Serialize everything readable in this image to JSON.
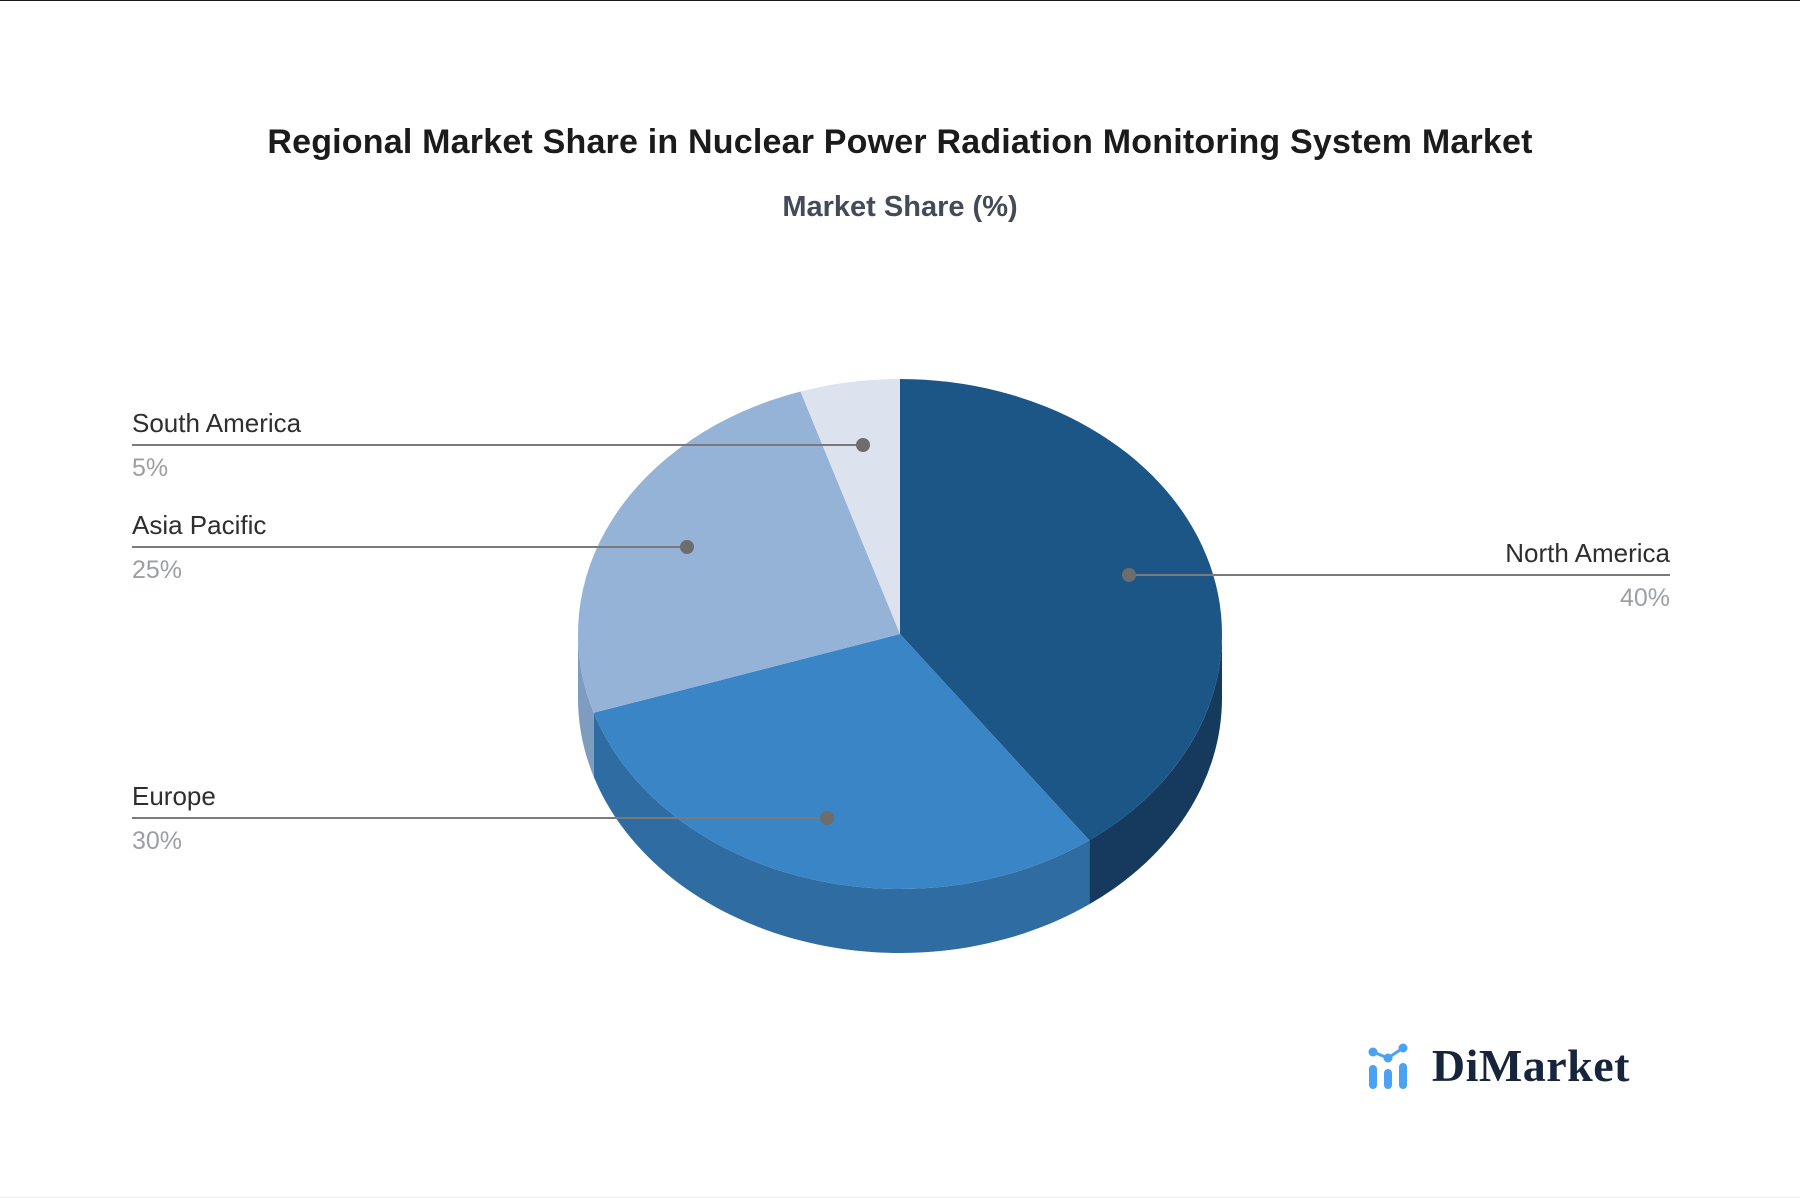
{
  "page": {
    "background": "#ffffff"
  },
  "chart_data": {
    "type": "pie",
    "style": "3d",
    "title": "Regional Market Share in Nuclear Power Radiation Monitoring System Market",
    "subtitle": "Market Share (%)",
    "unit": "%",
    "rotation": "clockwise-from-top",
    "legend": "none",
    "slices": [
      {
        "label": "North America",
        "value": 40,
        "pct_label": "40%",
        "color": "#1C5687",
        "side_color": "#16395E",
        "label_side": "right"
      },
      {
        "label": "Europe",
        "value": 30,
        "pct_label": "30%",
        "color": "#3A85C5",
        "side_color": "#2F6CA2",
        "label_side": "left"
      },
      {
        "label": "Asia Pacific",
        "value": 25,
        "pct_label": "25%",
        "color": "#95B3D7",
        "side_color": "#7E9CBE",
        "label_side": "left"
      },
      {
        "label": "South America",
        "value": 5,
        "pct_label": "5%",
        "color": "#DCE3EF",
        "side_color": "#B9C4D6",
        "label_side": "left"
      }
    ],
    "leader_line_color": "#7A7A7A",
    "leader_dot_color": "#6D6D6D",
    "label_text_color": "#2E2E2E",
    "pct_text_color": "#9AA0A6"
  },
  "branding": {
    "logo_text": "DiMarket",
    "logo_text_color": "#16243C",
    "logo_icon_color": "#4BA1F3"
  }
}
